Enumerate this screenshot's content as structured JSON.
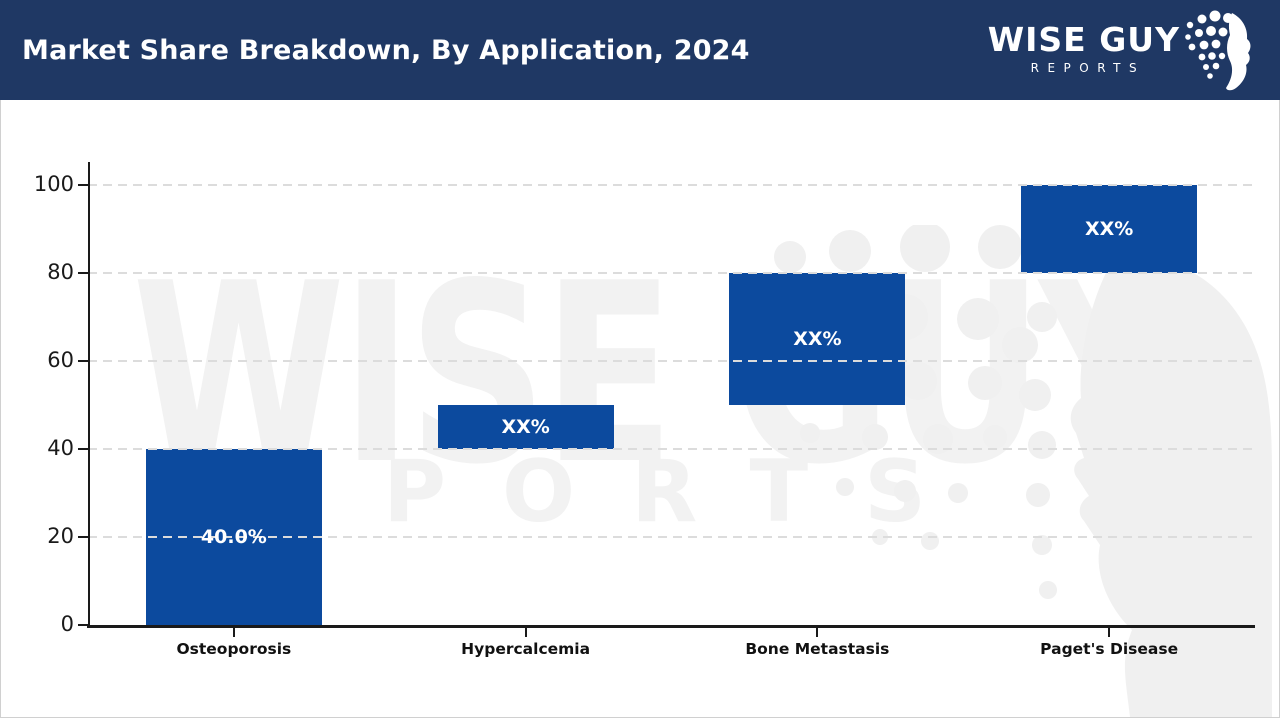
{
  "header": {
    "title": "Market Share Breakdown, By Application, 2024",
    "logo": {
      "name": "WISE GUY",
      "subtitle": "REPORTS"
    }
  },
  "watermark": {
    "line1": "WISE GUY",
    "line2": "PORTS"
  },
  "chart_data": {
    "type": "bar",
    "subtype": "floating-waterfall",
    "title": "Market Share Breakdown, By Application, 2024",
    "categories": [
      "Osteoporosis",
      "Hypercalcemia",
      "Bone Metastasis",
      "Paget's Disease"
    ],
    "bars": [
      {
        "category": "Osteoporosis",
        "start": 0,
        "end": 40,
        "label": "40.0%"
      },
      {
        "category": "Hypercalcemia",
        "start": 40,
        "end": 50,
        "label": "XX%"
      },
      {
        "category": "Bone Metastasis",
        "start": 50,
        "end": 80,
        "label": "XX%"
      },
      {
        "category": "Paget's Disease",
        "start": 80,
        "end": 100,
        "label": "XX%"
      }
    ],
    "y_ticks": [
      0,
      20,
      40,
      60,
      80,
      100
    ],
    "ylim": [
      0,
      105
    ],
    "xlabel": "",
    "ylabel": "",
    "legend": null,
    "grid": {
      "axis": "y",
      "style": "dashed",
      "color": "#dcdcdc"
    },
    "colors": {
      "bar": "#0c4a9e",
      "header_bg": "#1f3864",
      "axis": "#1a1a1a",
      "bar_label_text": "#ffffff",
      "watermark": "#f1f1f1",
      "border": "#d0d0d0"
    }
  }
}
